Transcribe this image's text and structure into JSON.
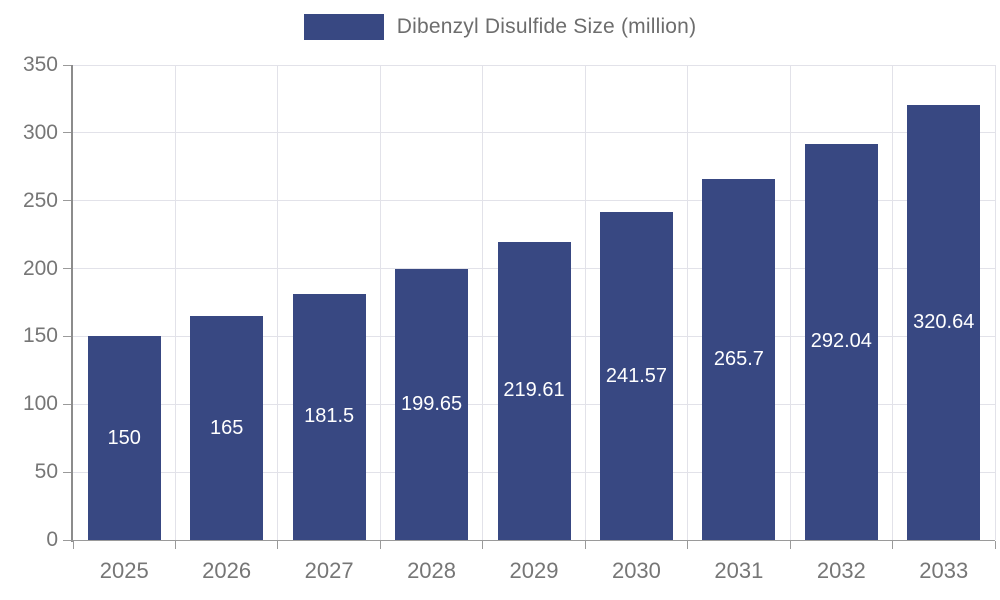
{
  "legend": {
    "label": "Dibenzyl Disulfide Size (million)"
  },
  "colors": {
    "bar": "#384882",
    "axis": "#8c8c8c",
    "grid": "#e2e2e9",
    "tick_label": "#767676",
    "value_label": "#ffffff",
    "legend_text": "#6d6d6d"
  },
  "chart_data": {
    "type": "bar",
    "title": "Dibenzyl Disulfide Size (million)",
    "categories": [
      "2025",
      "2026",
      "2027",
      "2028",
      "2029",
      "2030",
      "2031",
      "2032",
      "2033"
    ],
    "values": [
      150,
      165,
      181.5,
      199.65,
      219.61,
      241.57,
      265.7,
      292.04,
      320.64
    ],
    "value_labels": [
      "150",
      "165",
      "181.5",
      "199.65",
      "219.61",
      "241.57",
      "265.7",
      "292.04",
      "320.64"
    ],
    "xlabel": "",
    "ylabel": "",
    "ylim": [
      0,
      350
    ],
    "yticks": [
      0,
      50,
      100,
      150,
      200,
      250,
      300,
      350
    ],
    "grid": true,
    "legend_position": "top",
    "value_labels_inside_bars": true
  }
}
